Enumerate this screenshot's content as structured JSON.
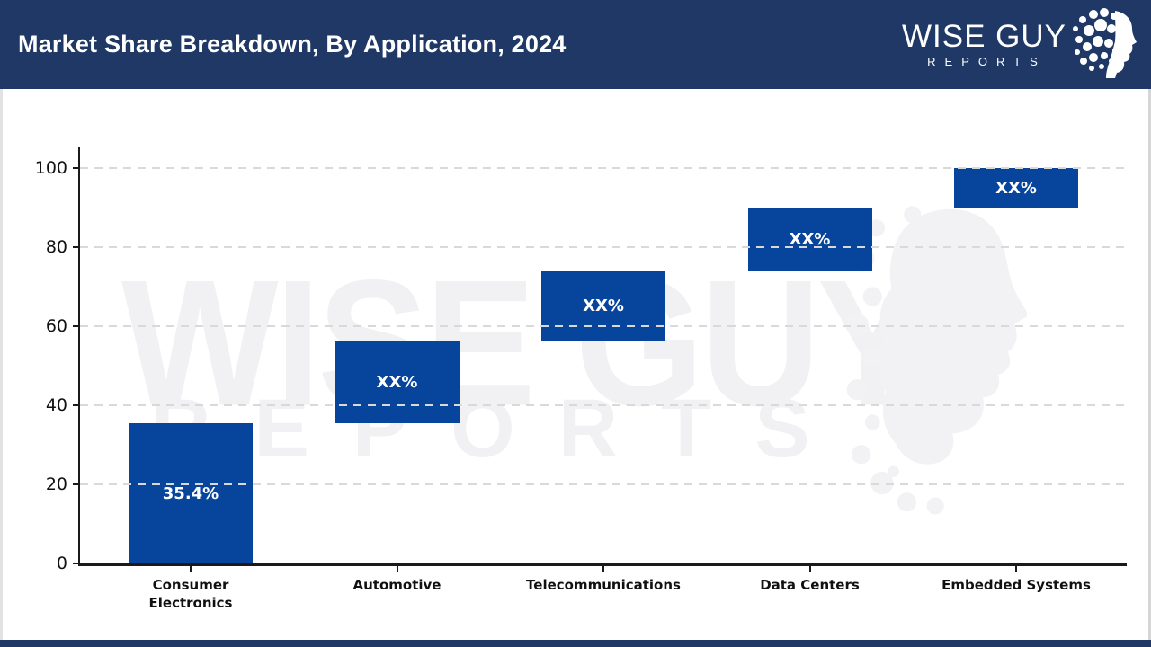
{
  "header": {
    "title": "Market Share Breakdown, By Application, 2024",
    "logo": {
      "line1": "WISE GUY",
      "line2": "REPORTS"
    }
  },
  "watermark": {
    "line1": "WISE GUY",
    "line2": "REPORTS"
  },
  "footer": {},
  "chart_data": {
    "type": "bar",
    "subtype": "waterfall",
    "title": "Market Share Breakdown, By Application, 2024",
    "categories": [
      "Consumer\nElectronics",
      "Automotive",
      "Telecommunications",
      "Data Centers",
      "Embedded Systems"
    ],
    "segments": [
      {
        "category": "Consumer\nElectronics",
        "start": 0,
        "end": 35.4,
        "label": "35.4%"
      },
      {
        "category": "Automotive",
        "start": 35.4,
        "end": 56.3,
        "label": "XX%"
      },
      {
        "category": "Telecommunications",
        "start": 56.3,
        "end": 73.9,
        "label": "XX%"
      },
      {
        "category": "Data Centers",
        "start": 73.9,
        "end": 90.0,
        "label": "XX%"
      },
      {
        "category": "Embedded Systems",
        "start": 90.0,
        "end": 100.0,
        "label": "XX%"
      }
    ],
    "xlabel": "",
    "ylabel": "",
    "ylim": [
      0,
      100
    ],
    "yticks": [
      0,
      20,
      40,
      60,
      80,
      100
    ],
    "grid": "horizontal-dashed",
    "legend": "none",
    "bar_color": "#07449c",
    "bar_label_color": "#ffffff",
    "grid_color": "#d9d9d9",
    "axis_color": "#1a1a1a",
    "header_color": "#1f3866"
  }
}
